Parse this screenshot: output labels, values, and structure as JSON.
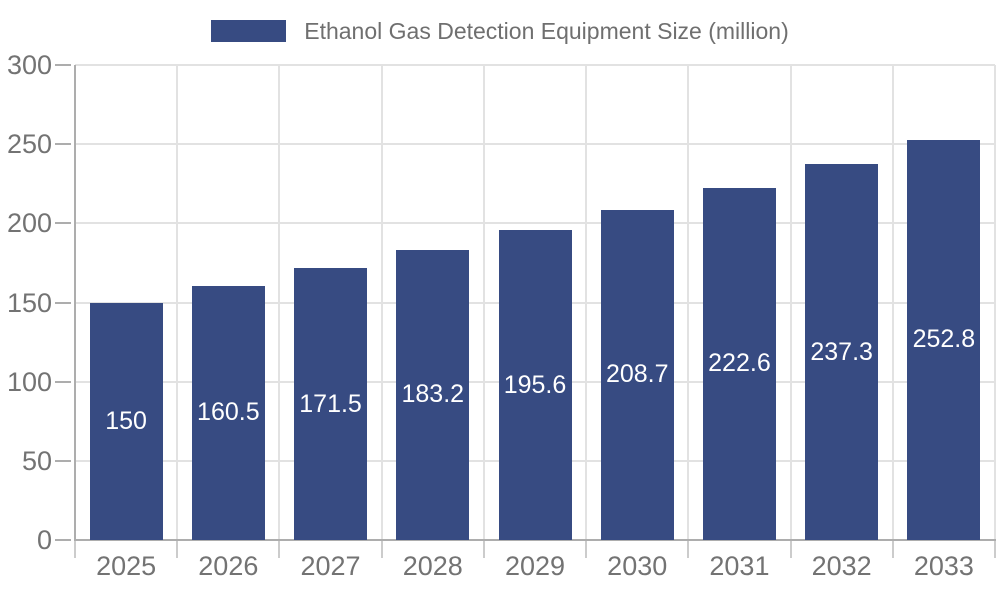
{
  "chart_data": {
    "type": "bar",
    "title": "Ethanol Gas Detection Equipment Size (million)",
    "categories": [
      "2025",
      "2026",
      "2027",
      "2028",
      "2029",
      "2030",
      "2031",
      "2032",
      "2033"
    ],
    "values": [
      150,
      160.5,
      171.5,
      183.2,
      195.6,
      208.7,
      222.6,
      237.3,
      252.8
    ],
    "xlabel": "",
    "ylabel": "",
    "ylim": [
      0,
      300
    ],
    "yticks": [
      0,
      50,
      100,
      150,
      200,
      250,
      300
    ],
    "grid": true,
    "legend_position": "top",
    "colors": {
      "bar": "#374B82",
      "value_label": "#FFFFFF",
      "axis_text": "#737373",
      "legend_text": "#6F6F6F",
      "gridline": "#E2E2E2",
      "axis_line": "#ADADAD",
      "x_tick": "#CCCCCC",
      "background": "#FFFFFF"
    }
  }
}
